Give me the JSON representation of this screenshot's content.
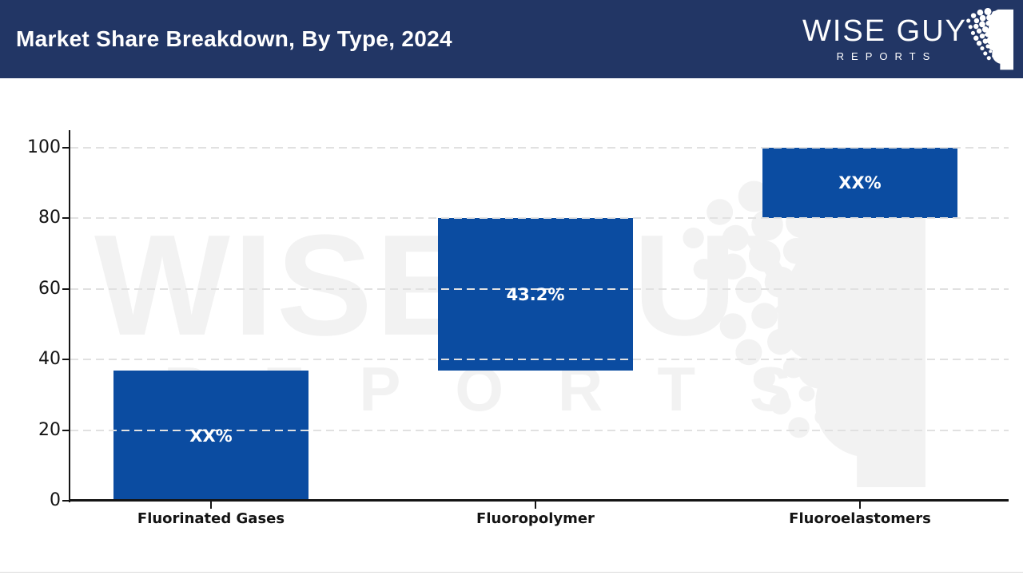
{
  "header": {
    "title": "Market Share Breakdown, By Type, 2024",
    "brand": {
      "name": "WISE GUY",
      "subtitle": "REPORTS"
    }
  },
  "watermark": {
    "brand_name": "WISE GUY",
    "brand_subtitle": "REPORTS"
  },
  "chart_data": {
    "type": "bar",
    "variant": "floating-waterfall",
    "title": "Market Share Breakdown, By Type, 2024",
    "categories": [
      "Fluorinated Gases",
      "Fluoropolymer",
      "Fluoroelastomers"
    ],
    "segments": [
      {
        "category": "Fluorinated Gases",
        "start": 0,
        "end": 36.8,
        "value_label": "XX%"
      },
      {
        "category": "Fluoropolymer",
        "start": 36.8,
        "end": 80,
        "value_label": "43.2%"
      },
      {
        "category": "Fluoroelastomers",
        "start": 80,
        "end": 100,
        "value_label": "XX%"
      }
    ],
    "values": [
      36.8,
      43.2,
      20
    ],
    "xlabel": "",
    "ylabel": "",
    "ylim": [
      0,
      100
    ],
    "yticks": [
      0,
      20,
      40,
      60,
      80,
      100
    ],
    "grid": {
      "horizontal": true,
      "style": "dashed",
      "color": "#e1e1e1"
    },
    "bar_color": "#0B4CA1",
    "bar_label_color": "#ffffff",
    "legend": "none"
  },
  "colors": {
    "header_bg": "#223665",
    "bar": "#0B4CA1",
    "axis": "#141414",
    "watermark": "#f2f2f2"
  }
}
